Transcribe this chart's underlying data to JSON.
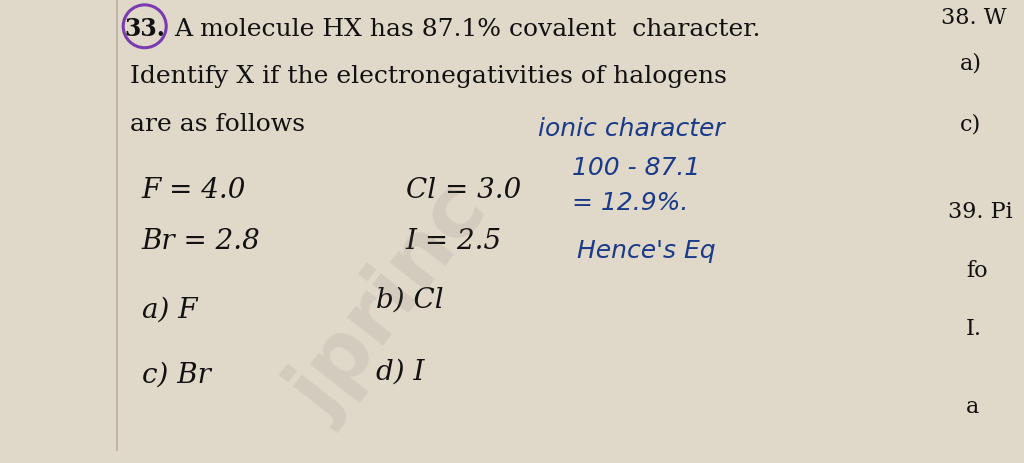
{
  "bg_color": "#e0d8c8",
  "question_number": "33.",
  "question_line1": "A molecule HX has 87.1% covalent  character.",
  "question_line2": "Identify X if the electronegativities of halogens",
  "question_line3": "are as follows",
  "data_F": "F = 4.0",
  "data_Cl": "Cl = 3.0",
  "data_Br": "Br = 2.8",
  "data_I": "I = 2.5",
  "handwritten_line1": "ionic character",
  "handwritten_line2": "100 - 87.1",
  "handwritten_line3": "= 12.9%.",
  "handwritten_line4": "Hence's Eq",
  "option_a": "a) F",
  "option_b": "b) Cl",
  "option_c": "c) Br",
  "option_d": "d) I",
  "right_number": "38. W",
  "right_a": "a)",
  "right_c": "c)",
  "right_39": "39. Pi",
  "right_fo": "fo",
  "right_I": "I.",
  "right_a2": "a",
  "text_color": "#111111",
  "handwritten_color": "#1a3a8a",
  "circle_color": "#7a3ab0",
  "font_size_main": 18,
  "font_size_options": 18,
  "font_size_handwritten": 16
}
